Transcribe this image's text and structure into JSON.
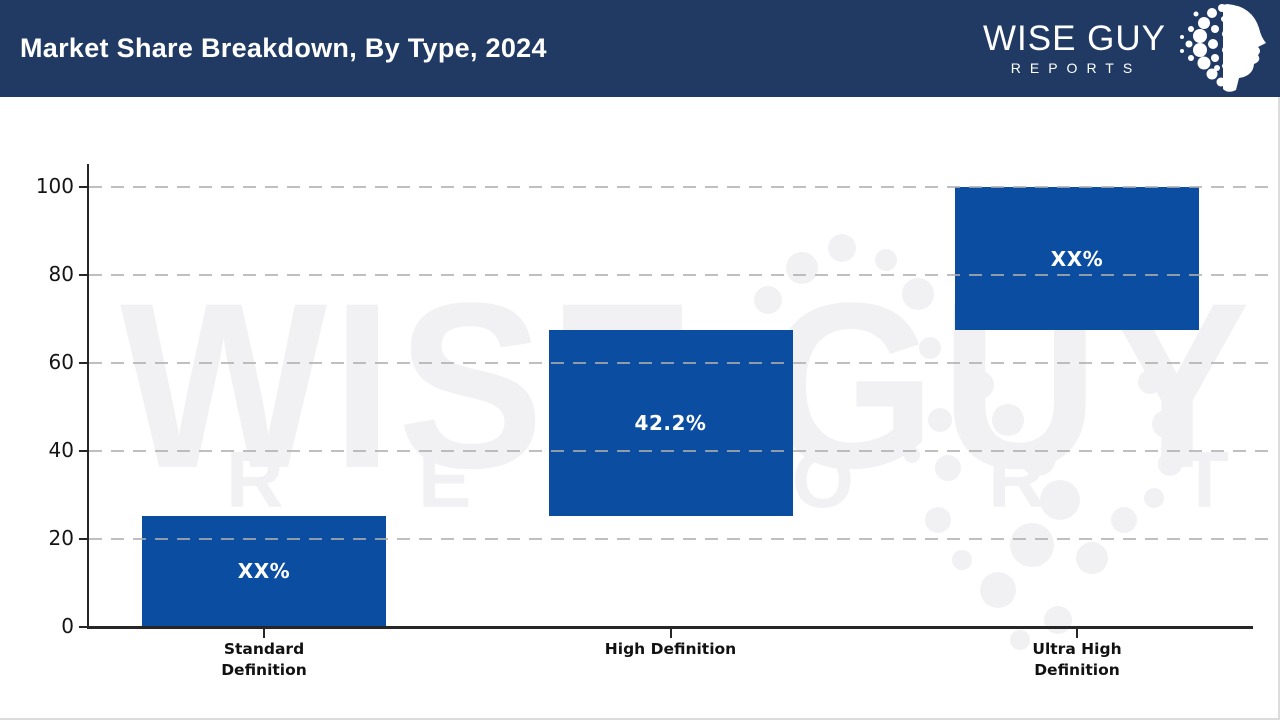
{
  "header": {
    "title": "Market Share Breakdown, By Type, 2024",
    "bg_color": "#203a64"
  },
  "logo": {
    "line1": "WISE GUY",
    "line2": "REPORTS",
    "icon": "dotted-face-profile"
  },
  "watermark": {
    "line1": "WISE GUY",
    "line2": "R E P O R T S"
  },
  "chart_data": {
    "type": "bar",
    "subtype": "floating-segment (waterfall style, segments stack to 100%)",
    "title": "Market Share Breakdown, By Type, 2024",
    "categories": [
      "Standard Definition",
      "High Definition",
      "Ultra High Definition"
    ],
    "category_lines": [
      [
        "Standard",
        "Definition"
      ],
      [
        "High Definition"
      ],
      [
        "Ultra High",
        "Definition"
      ]
    ],
    "segments": [
      {
        "category": "Standard Definition",
        "label": "XX%",
        "start": 0,
        "end": 25.3,
        "value_estimated": 25.3
      },
      {
        "category": "High Definition",
        "label": "42.2%",
        "start": 25.3,
        "end": 67.5,
        "value": 42.2
      },
      {
        "category": "Ultra High Definition",
        "label": "XX%",
        "start": 67.5,
        "end": 100,
        "value_estimated": 32.5
      }
    ],
    "yticks": [
      0,
      20,
      40,
      60,
      80,
      100
    ],
    "ytick_labels": [
      "0",
      "20",
      "40",
      "60",
      "80",
      "100"
    ],
    "ylim": [
      0,
      105
    ],
    "xlabel": "",
    "ylabel": "",
    "grid": "horizontal dashed, drawn over bars",
    "legend": "none",
    "bar_color": "#0b4da1",
    "bar_label_color": "#ffffff",
    "axis_color": "#262626",
    "gridline_color": "#cfcfcf"
  }
}
